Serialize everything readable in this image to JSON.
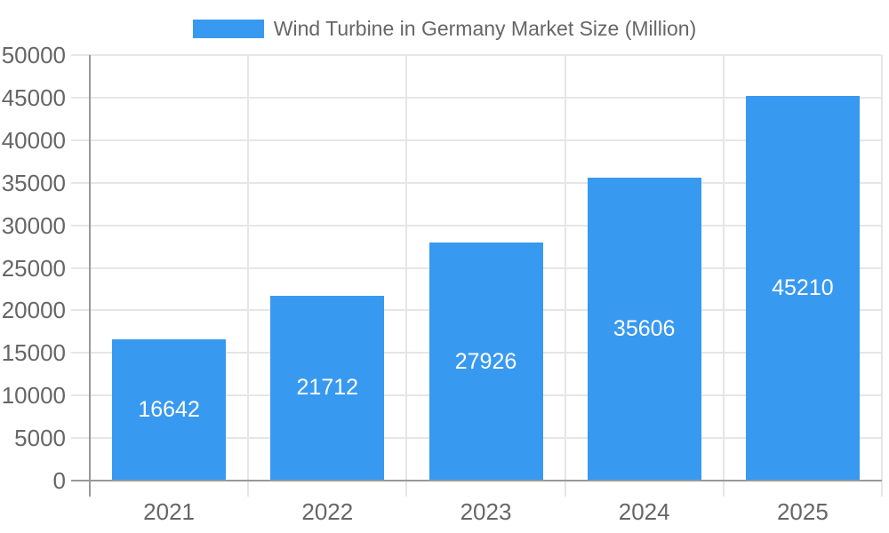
{
  "chart_data": {
    "type": "bar",
    "title": "Wind Turbine in Germany Market Size (Million)",
    "legend": {
      "label": "Wind Turbine in Germany Market Size (Million)",
      "position": "top-center"
    },
    "categories": [
      "2021",
      "2022",
      "2023",
      "2024",
      "2025"
    ],
    "values": [
      16642,
      21712,
      27926,
      35606,
      45210
    ],
    "xlabel": "",
    "ylabel": "",
    "ylim": [
      0,
      50000
    ],
    "ytick_step": 5000,
    "yticks": [
      "0",
      "5000",
      "10000",
      "15000",
      "20000",
      "25000",
      "30000",
      "35000",
      "40000",
      "45000",
      "50000"
    ],
    "grid": true,
    "value_labels": {
      "position": "inside-center"
    },
    "colors": {
      "bar": "#3899F0",
      "gridline": "#E6E6E6",
      "axis_line": "#999999",
      "tick_text": "#666666",
      "legend_text": "#666666",
      "value_text": "#FFFFFF",
      "background": "#FFFFFF"
    }
  }
}
